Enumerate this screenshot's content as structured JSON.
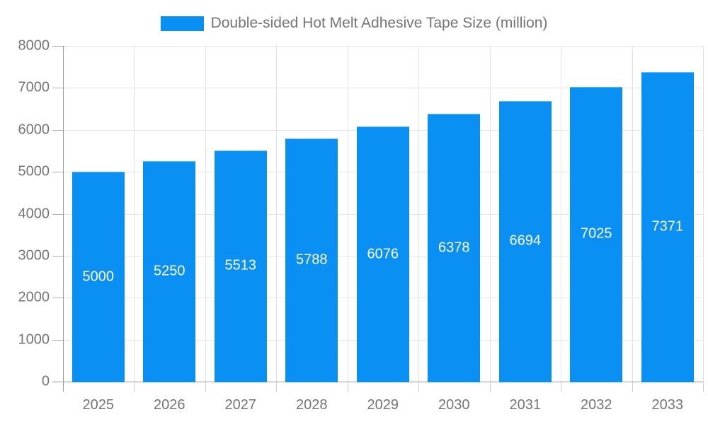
{
  "chart_data": {
    "type": "bar",
    "title": "Double-sided Hot Melt Adhesive Tape Size (million)",
    "categories": [
      "2025",
      "2026",
      "2027",
      "2028",
      "2029",
      "2030",
      "2031",
      "2032",
      "2033"
    ],
    "values": [
      5000,
      5250,
      5513,
      5788,
      6076,
      6378,
      6694,
      7025,
      7371
    ],
    "series": [
      {
        "name": "Double-sided Hot Melt Adhesive Tape Size (million)",
        "values": [
          5000,
          5250,
          5513,
          5788,
          6076,
          6378,
          6694,
          7025,
          7371
        ]
      }
    ],
    "xlabel": "",
    "ylabel": "",
    "ylim": [
      0,
      8000
    ],
    "ytick_step": 1000,
    "ytick_labels": [
      "0",
      "1000",
      "2000",
      "3000",
      "4000",
      "5000",
      "6000",
      "7000",
      "8000"
    ],
    "grid": true,
    "legend_position": "top",
    "value_labels_inside_bars": true
  },
  "legend": {
    "label": "Double-sided Hot Melt Adhesive Tape Size (million)"
  },
  "colors": {
    "bar": "#0a90f2",
    "bar_label_text": "#ffffff",
    "axis_text": "#757575",
    "legend_text": "#757575",
    "axis_line": "#999999",
    "gridline": "#e6e6e6",
    "background": "#ffffff"
  }
}
